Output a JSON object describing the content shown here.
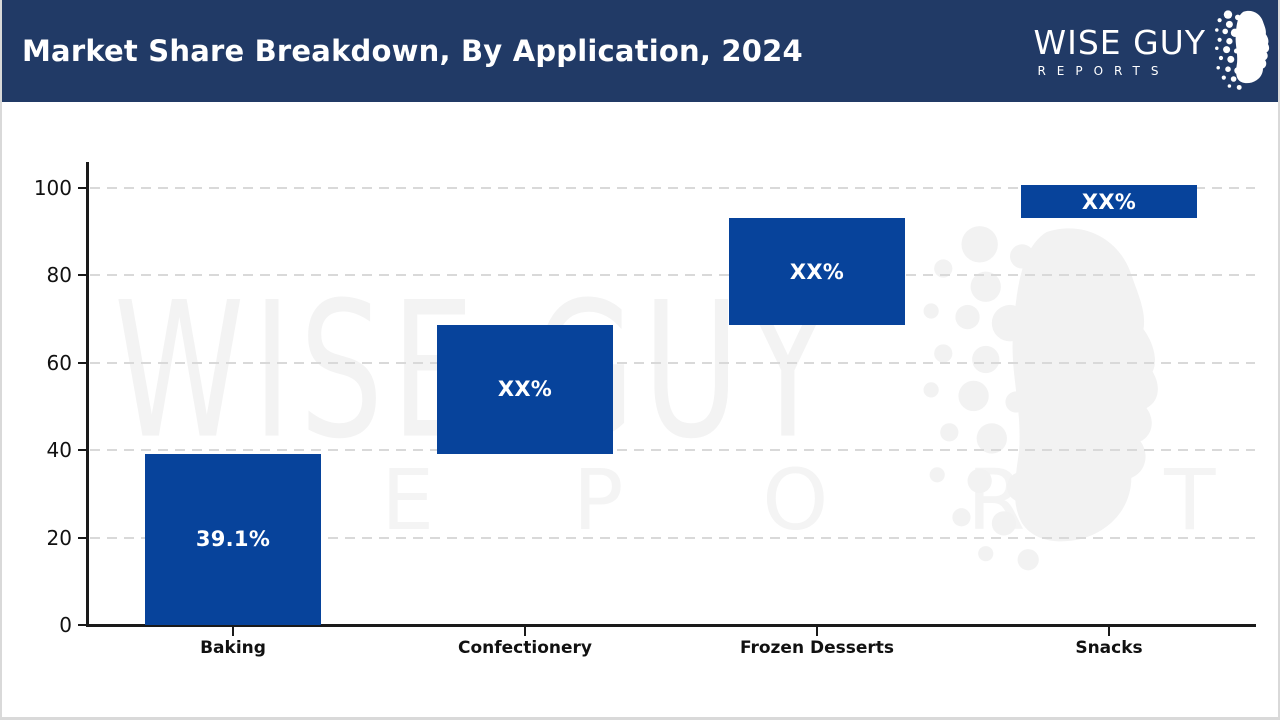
{
  "header": {
    "title": "Market Share Breakdown, By Application, 2024",
    "logo": {
      "line1": "WISE GUY",
      "line2": "REPORTS"
    }
  },
  "watermark": {
    "line1": "WISE GUY",
    "line2": "REPORTS"
  },
  "colors": {
    "header_bg": "#213a66",
    "bar": "#07439b",
    "grid": "#d9d9d9",
    "axis": "#1a1a1a",
    "watermark": "#f3f3f3"
  },
  "chart_data": {
    "type": "bar",
    "subtype": "waterfall",
    "title": "Market Share Breakdown, By Application, 2024",
    "categories": [
      "Baking",
      "Confectionery",
      "Frozen Desserts",
      "Snacks"
    ],
    "series": [
      {
        "name": "Market Share",
        "segments": [
          {
            "category": "Baking",
            "start": 0,
            "end": 39.1,
            "value": 39.1,
            "label": "39.1%"
          },
          {
            "category": "Confectionery",
            "start": 39.1,
            "end": 68.6,
            "value": 29.5,
            "label": "XX%"
          },
          {
            "category": "Frozen Desserts",
            "start": 68.6,
            "end": 93.0,
            "value": 24.4,
            "label": "XX%"
          },
          {
            "category": "Snacks",
            "start": 93.0,
            "end": 100.5,
            "value": 7.5,
            "label": "XX%"
          }
        ]
      }
    ],
    "xlabel": "",
    "ylabel": "",
    "ylim": [
      0,
      100
    ],
    "yticks": [
      0,
      20,
      40,
      60,
      80,
      100
    ],
    "grid": "horizontal-dashed",
    "legend": "none",
    "bar_color": "#07439b"
  }
}
